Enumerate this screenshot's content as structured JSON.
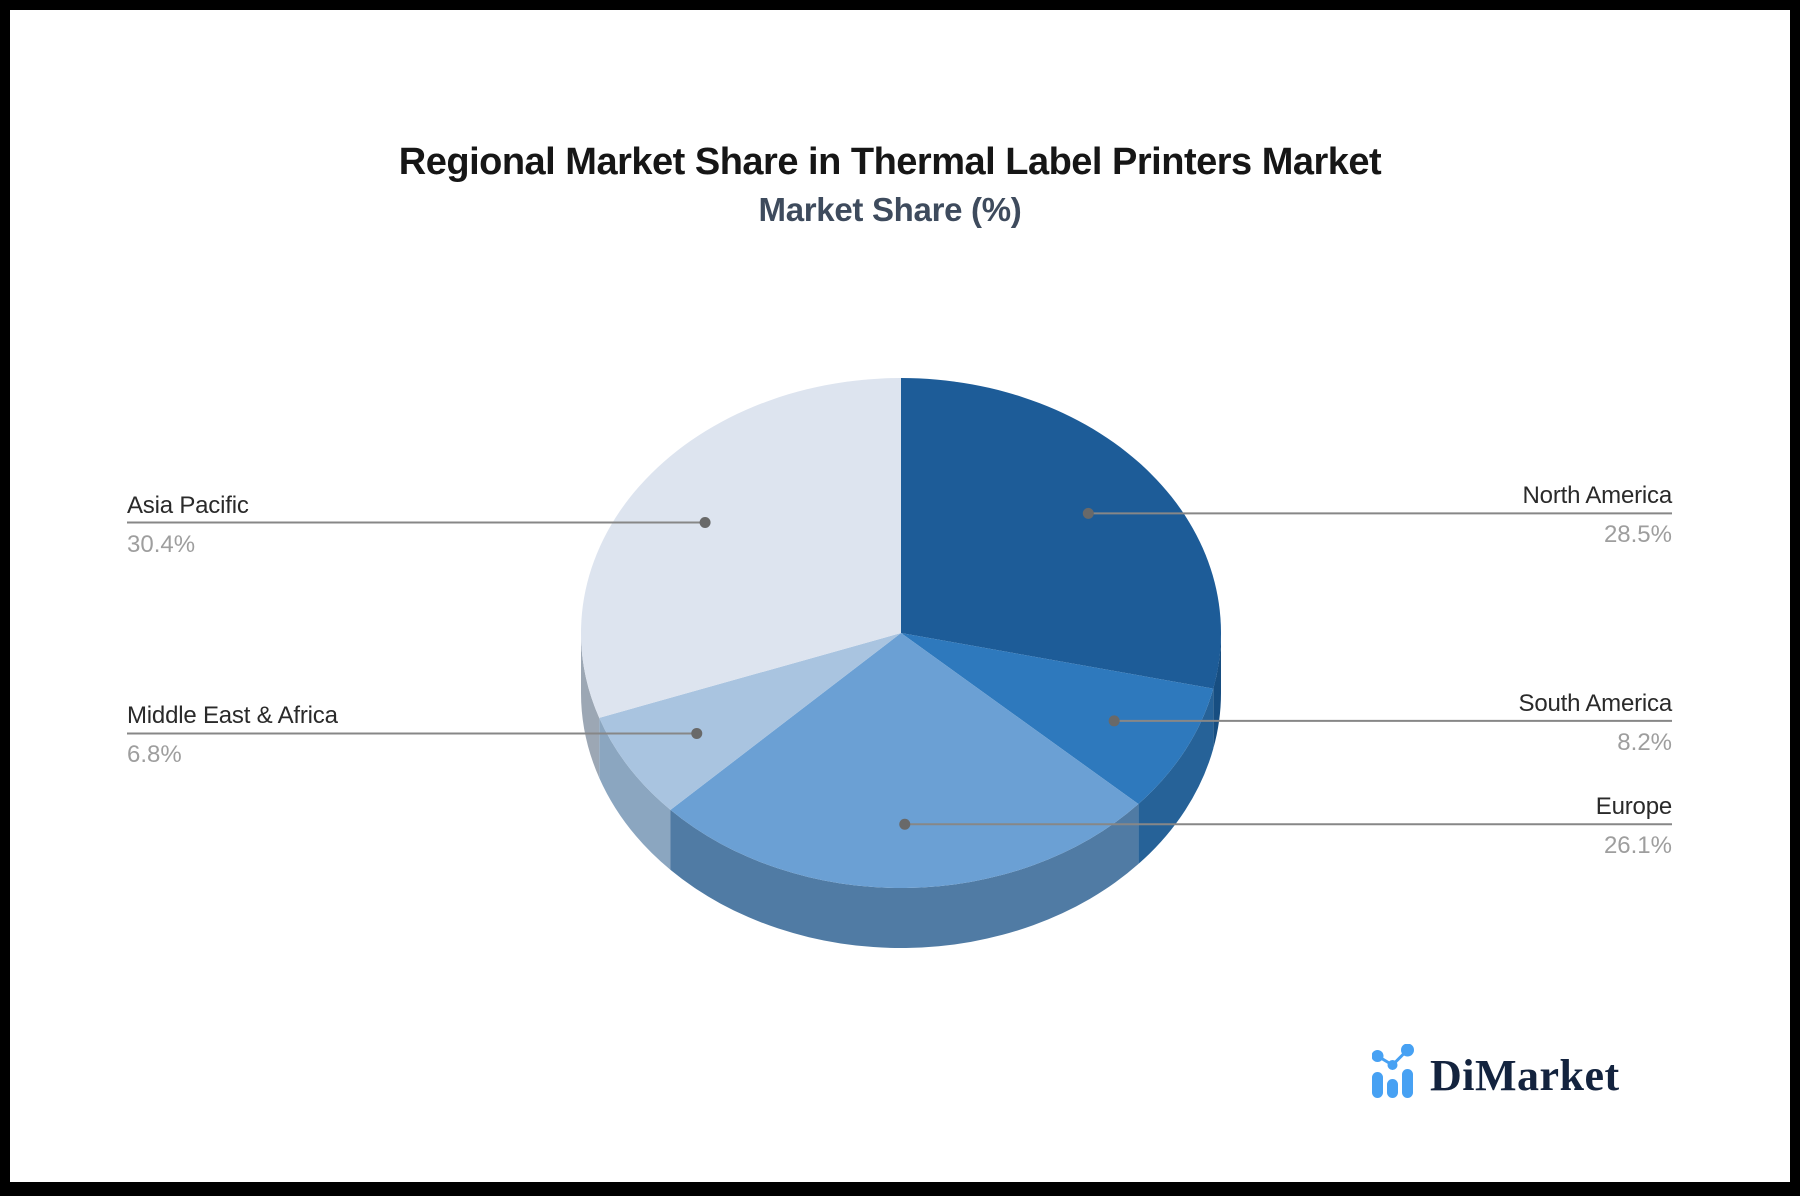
{
  "header": {
    "title": "Regional Market Share in Thermal Label Printers Market",
    "subtitle": "Market Share (%)"
  },
  "chart_data": {
    "type": "pie",
    "style": "pie-3d",
    "title": "Regional Market Share in Thermal Label Printers Market",
    "subtitle": "Market Share (%)",
    "unit": "%",
    "start_angle": "12-oclock",
    "direction": "clockwise",
    "legend_position": "callout-labels",
    "labels": [
      "North America",
      "South America",
      "Europe",
      "Middle East & Africa",
      "Asia Pacific"
    ],
    "values": [
      28.5,
      8.2,
      26.1,
      6.8,
      30.4
    ],
    "percent_labels": [
      "28.5%",
      "8.2%",
      "26.1%",
      "6.8%",
      "30.4%"
    ],
    "slice_colors": [
      "#1d5c98",
      "#2e79bd",
      "#6ba0d4",
      "#a9c4e0",
      "#dde4ef"
    ],
    "side_colors": [
      "#174e81",
      "#266298",
      "#507ba4",
      "#8ba6c0",
      "#9ca7b4"
    ],
    "leader_line_color": "#878787",
    "leader_dot_color": "#696969",
    "label_text_color": "#2a2a2a",
    "percent_text_color": "#9e9e9e"
  },
  "logo": {
    "text": "DiMarket",
    "icon": "bar-line-chart-icon",
    "icon_color": "#47a1f3",
    "text_color": "#13233e"
  }
}
